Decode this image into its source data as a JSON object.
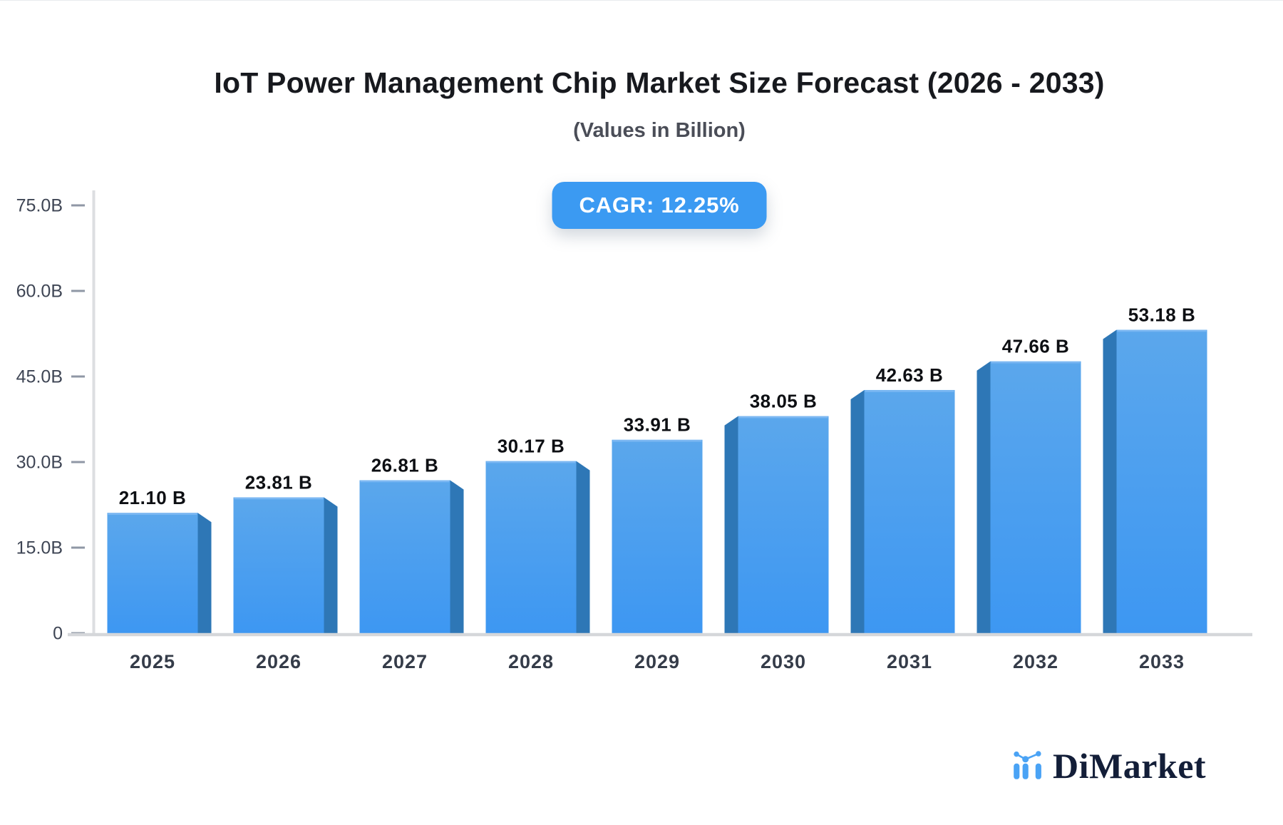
{
  "page": {
    "title": "IoT Power Management Chip Market Size Forecast (2026 - 2033)",
    "subtitle": "(Values in Billion)",
    "cagr_badge": "CAGR: 12.25%"
  },
  "brand": {
    "name": "DiMarket",
    "icon": "bar-line-chart-icon",
    "icon_color": "#4aa3f5",
    "text_color": "#131e38"
  },
  "colors": {
    "bar_face_top": "#5ba7ec",
    "bar_face_bottom": "#3d97f2",
    "bar_top_highlight": "#7fb9f3",
    "bar_side": "#2e77b6",
    "badge_bg": "#3b9af2",
    "axis_line": "#dcdee1",
    "baseline": "#d5d7da",
    "tick_dash": "#8f97a5",
    "tick_text": "#3e4554",
    "year_text": "#353c49",
    "value_text": "#0d0f13"
  },
  "chart_data": {
    "type": "bar",
    "style": "3d-extruded-bars",
    "categories": [
      "2025",
      "2026",
      "2027",
      "2028",
      "2029",
      "2030",
      "2031",
      "2032",
      "2033"
    ],
    "values": [
      21.1,
      23.81,
      26.81,
      30.17,
      33.91,
      38.05,
      42.63,
      47.66,
      53.18
    ],
    "value_labels": [
      "21.10 B",
      "23.81 B",
      "26.81 B",
      "30.17 B",
      "33.91 B",
      "38.05 B",
      "42.63 B",
      "47.66 B",
      "53.18 B"
    ],
    "unit": "Billion",
    "title": "IoT Power Management Chip Market Size Forecast (2026 - 2033)",
    "subtitle": "(Values in Billion)",
    "annotation": "CAGR: 12.25%",
    "xlabel": "",
    "ylabel": "",
    "ylim": [
      0,
      75
    ],
    "ytick_values": [
      0,
      15,
      30,
      45,
      60,
      75
    ],
    "ytick_labels": [
      "0",
      "15.0B",
      "30.0B",
      "45.0B",
      "60.0B",
      "75.0B"
    ],
    "grid": false,
    "legend": false
  }
}
